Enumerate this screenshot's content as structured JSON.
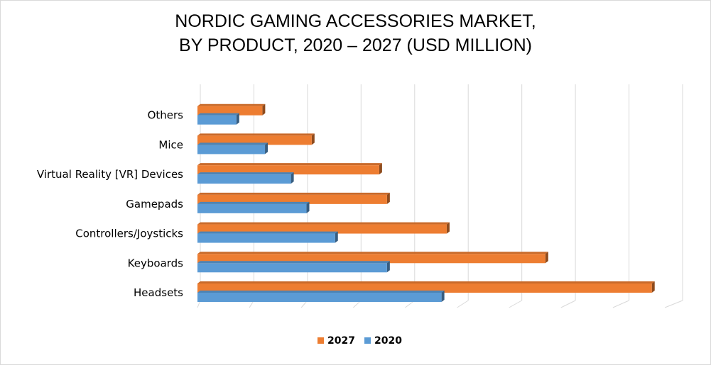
{
  "chart_data": {
    "type": "bar",
    "orientation": "horizontal",
    "title_lines": [
      "NORDIC GAMING ACCESSORIES MARKET,",
      "BY PRODUCT, 2020 – 2027 (USD MILLION)"
    ],
    "categories": [
      "Headsets",
      "Keyboards",
      "Controllers/Joysticks",
      "Gamepads",
      "Virtual Reality [VR] Devices",
      "Mice",
      "Others"
    ],
    "series": [
      {
        "name": "2027",
        "color": "#ed7d31",
        "values": [
          87.5,
          67,
          48,
          36.5,
          35,
          22,
          12.5
        ]
      },
      {
        "name": "2020",
        "color": "#5b9bd5",
        "values": [
          47,
          36.5,
          26.5,
          21,
          18,
          13,
          7.5
        ]
      }
    ],
    "xlim": [
      0,
      90
    ],
    "x_gridlines": true,
    "x_tick_labels_visible": false,
    "legend_position": "bottom",
    "style": "3d-bar"
  }
}
